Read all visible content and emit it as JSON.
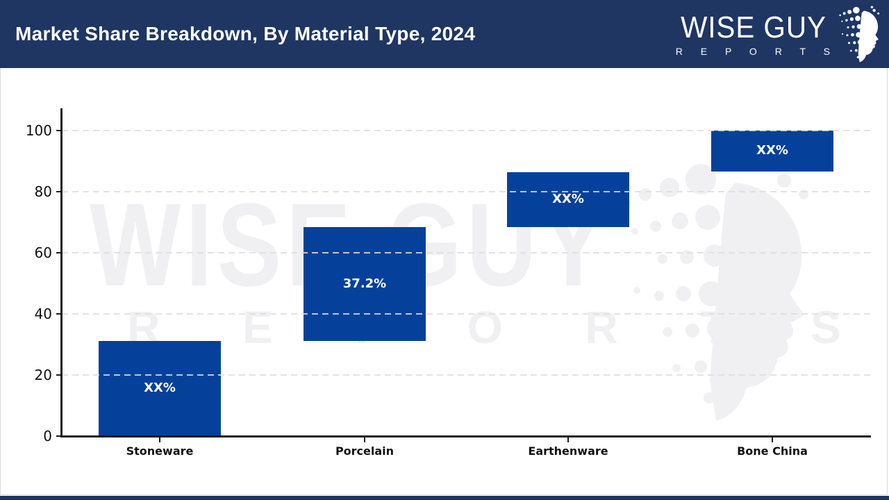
{
  "header": {
    "title": "Market Share Breakdown, By Material Type, 2024",
    "background_color": "#1F3663",
    "logo": {
      "line1": "WISE GUY",
      "line2": "R E P O R T S",
      "face_icon": "dotted-face-profile"
    }
  },
  "watermark": {
    "line1": "WISE GUY",
    "line2": "R E P O R T S",
    "face_icon": "dotted-face-profile",
    "color": "#f0f0f2"
  },
  "footer": {
    "color": "#1F3663"
  },
  "chart_data": {
    "type": "bar",
    "subtype": "waterfall",
    "title": "Market Share Breakdown, By Material Type, 2024",
    "xlabel": "",
    "ylabel": "",
    "ylim": [
      0,
      100
    ],
    "yticks": [
      0,
      20,
      40,
      60,
      80,
      100
    ],
    "grid": "horizontal-dashed",
    "bar_color": "#05419B",
    "label_color": "#ffffff",
    "categories": [
      "Stoneware",
      "Porcelain",
      "Earthenware",
      "Bone China"
    ],
    "segments": [
      {
        "category": "Stoneware",
        "start": 0,
        "end": 31.2,
        "label": "XX%"
      },
      {
        "category": "Porcelain",
        "start": 31.2,
        "end": 68.4,
        "label": "37.2%"
      },
      {
        "category": "Earthenware",
        "start": 68.5,
        "end": 86.3,
        "label": "XX%"
      },
      {
        "category": "Bone China",
        "start": 86.6,
        "end": 100,
        "label": "XX%"
      }
    ]
  }
}
